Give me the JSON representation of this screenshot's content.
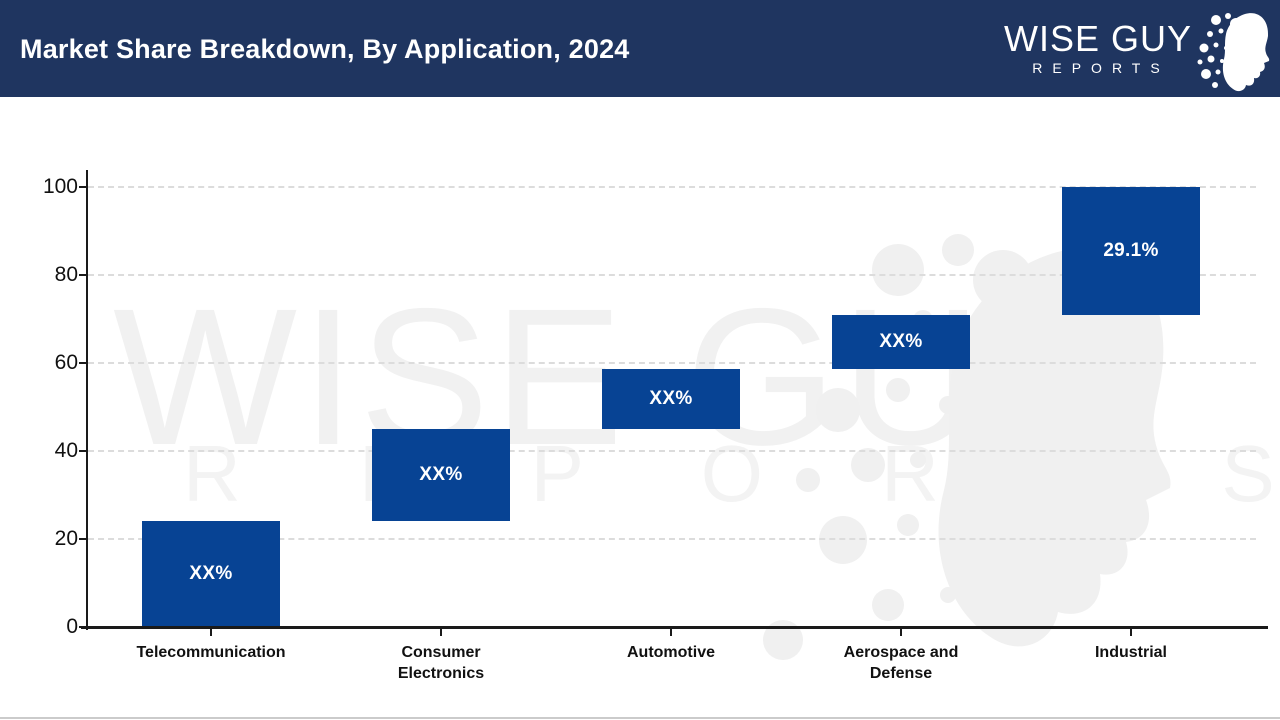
{
  "header": {
    "title": "Market Share Breakdown, By Application, 2024",
    "logo_main": "WISE GUY",
    "logo_sub": "REPORTS",
    "bg_color": "#1f3560"
  },
  "watermark": {
    "line1": "WISE GUY",
    "line2": "R E P O R T S"
  },
  "chart_data": {
    "type": "bar",
    "subtype": "waterfall",
    "title": "Market Share Breakdown, By Application, 2024",
    "categories": [
      "Telecommunication",
      "Consumer\nElectronics",
      "Automotive",
      "Aerospace and\nDefense",
      "Industrial"
    ],
    "segments": [
      {
        "category": "Telecommunication",
        "start": 0,
        "end": 24.2,
        "label": "XX%"
      },
      {
        "category": "Consumer Electronics",
        "start": 24.2,
        "end": 44.9,
        "label": "XX%"
      },
      {
        "category": "Automotive",
        "start": 44.9,
        "end": 58.6,
        "label": "XX%"
      },
      {
        "category": "Aerospace and Defense",
        "start": 58.6,
        "end": 70.9,
        "label": "XX%"
      },
      {
        "category": "Industrial",
        "start": 70.9,
        "end": 100,
        "label": "29.1%"
      }
    ],
    "yticks": [
      0,
      20,
      40,
      60,
      80,
      100
    ],
    "ylim": [
      0,
      104
    ],
    "grid": "horizontal dashed",
    "legend": "none",
    "bar_color": "#074394",
    "bar_label_color": "#ffffff",
    "axis_color": "#1a1a1a",
    "grid_color": "#dcdcdc"
  }
}
